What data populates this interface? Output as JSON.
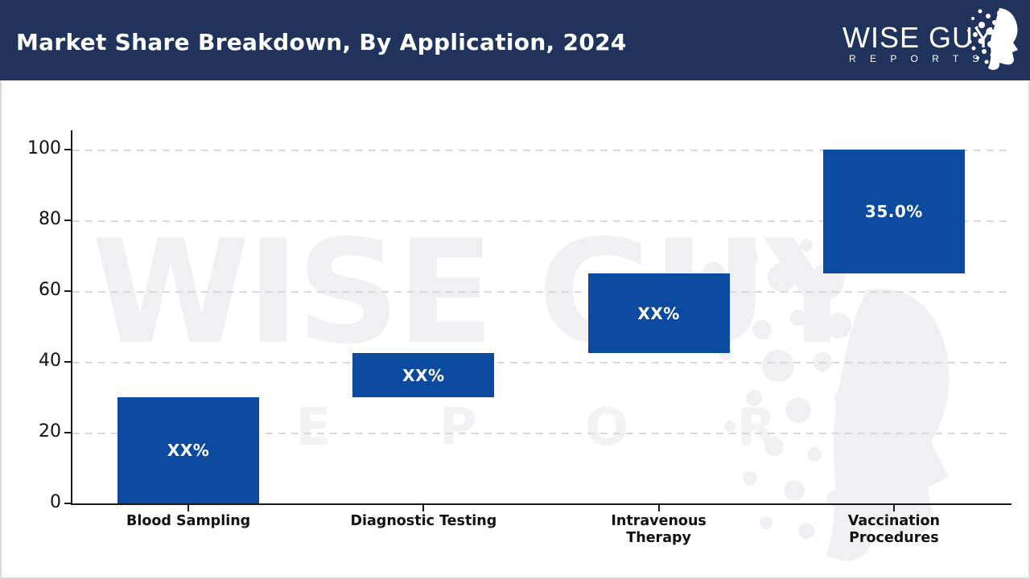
{
  "header": {
    "title": "Market Share Breakdown, By Application, 2024",
    "logo_wordmark": "WISE GUY",
    "logo_subtitle": "R E P O R T S",
    "bg_color": "#20335c"
  },
  "watermark": {
    "line1": "WISE GUY",
    "line2": "R E P O R T S"
  },
  "chart_data": {
    "type": "bar",
    "subtype": "waterfall",
    "title": "Market Share Breakdown, By Application, 2024",
    "categories": [
      "Blood Sampling",
      "Diagnostic Testing",
      "Intravenous\nTherapy",
      "Vaccination\nProcedures"
    ],
    "segments": [
      {
        "category": "Blood Sampling",
        "start": 0,
        "end": 30,
        "label": "XX%"
      },
      {
        "category": "Diagnostic Testing",
        "start": 30,
        "end": 42.5,
        "label": "XX%"
      },
      {
        "category": "Intravenous\nTherapy",
        "start": 42.5,
        "end": 65,
        "label": "XX%"
      },
      {
        "category": "Vaccination\nProcedures",
        "start": 65,
        "end": 100,
        "label": "35.0%"
      }
    ],
    "yticks": [
      0,
      20,
      40,
      60,
      80,
      100
    ],
    "ylim": [
      0,
      105
    ],
    "xlabel": "",
    "ylabel": "",
    "bar_color": "#0c4aa0",
    "bar_label_color": "#ffffff",
    "grid": "horizontal-dashed",
    "legend": "none"
  }
}
